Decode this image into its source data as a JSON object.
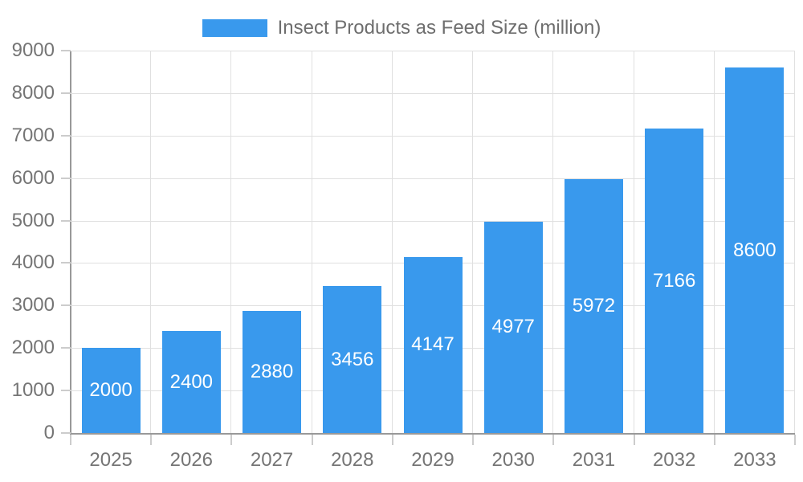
{
  "chart_data": {
    "type": "bar",
    "title": "Insect Products as Feed Size (million)",
    "categories": [
      "2025",
      "2026",
      "2027",
      "2028",
      "2029",
      "2030",
      "2031",
      "2032",
      "2033"
    ],
    "values": [
      2000,
      2400,
      2880,
      3456,
      4147,
      4977,
      5972,
      7166,
      8600
    ],
    "xlabel": "",
    "ylabel": "",
    "ylim": [
      0,
      9000
    ],
    "ytick_step": 1000,
    "yticks": [
      0,
      1000,
      2000,
      3000,
      4000,
      5000,
      6000,
      7000,
      8000,
      9000
    ],
    "grid": "both",
    "legend_position": "top-center",
    "bar_color": "#3999ed",
    "bar_label_color": "#ffffff",
    "axis_line_color": "#999999",
    "gridline_color": "#e0e0e0",
    "tick_color": "#cccccc",
    "axis_text_color": "#757575",
    "legend_text_color": "#6e6e6e",
    "background_color": "#ffffff"
  }
}
